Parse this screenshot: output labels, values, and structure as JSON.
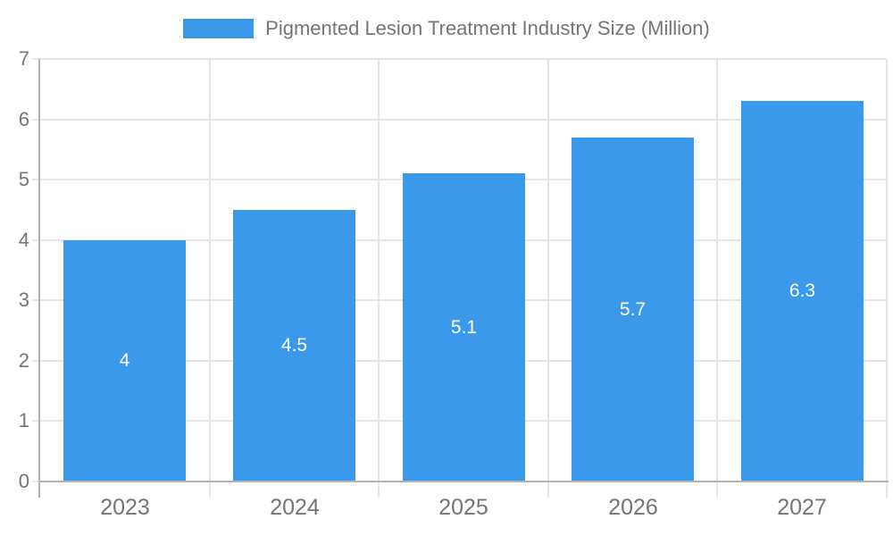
{
  "chart_data": {
    "type": "bar",
    "categories": [
      "2023",
      "2024",
      "2025",
      "2026",
      "2027"
    ],
    "series": [
      {
        "name": "Pigmented Lesion Treatment Industry Size (Million)",
        "values": [
          4,
          4.5,
          5.1,
          5.7,
          6.3
        ]
      }
    ],
    "value_labels": [
      "4",
      "4.5",
      "5.1",
      "5.7",
      "6.3"
    ],
    "ylim": [
      0,
      7
    ],
    "yticks": [
      0,
      1,
      2,
      3,
      4,
      5,
      6,
      7
    ],
    "grid": true,
    "legend_position": "top",
    "bar_color": "#3b99ec",
    "label_color": "#757575",
    "value_label_color": "#ffffff",
    "gridline_color": "#e6e6e6",
    "axis_color": "#b2b2b2",
    "background": "#ffffff"
  }
}
